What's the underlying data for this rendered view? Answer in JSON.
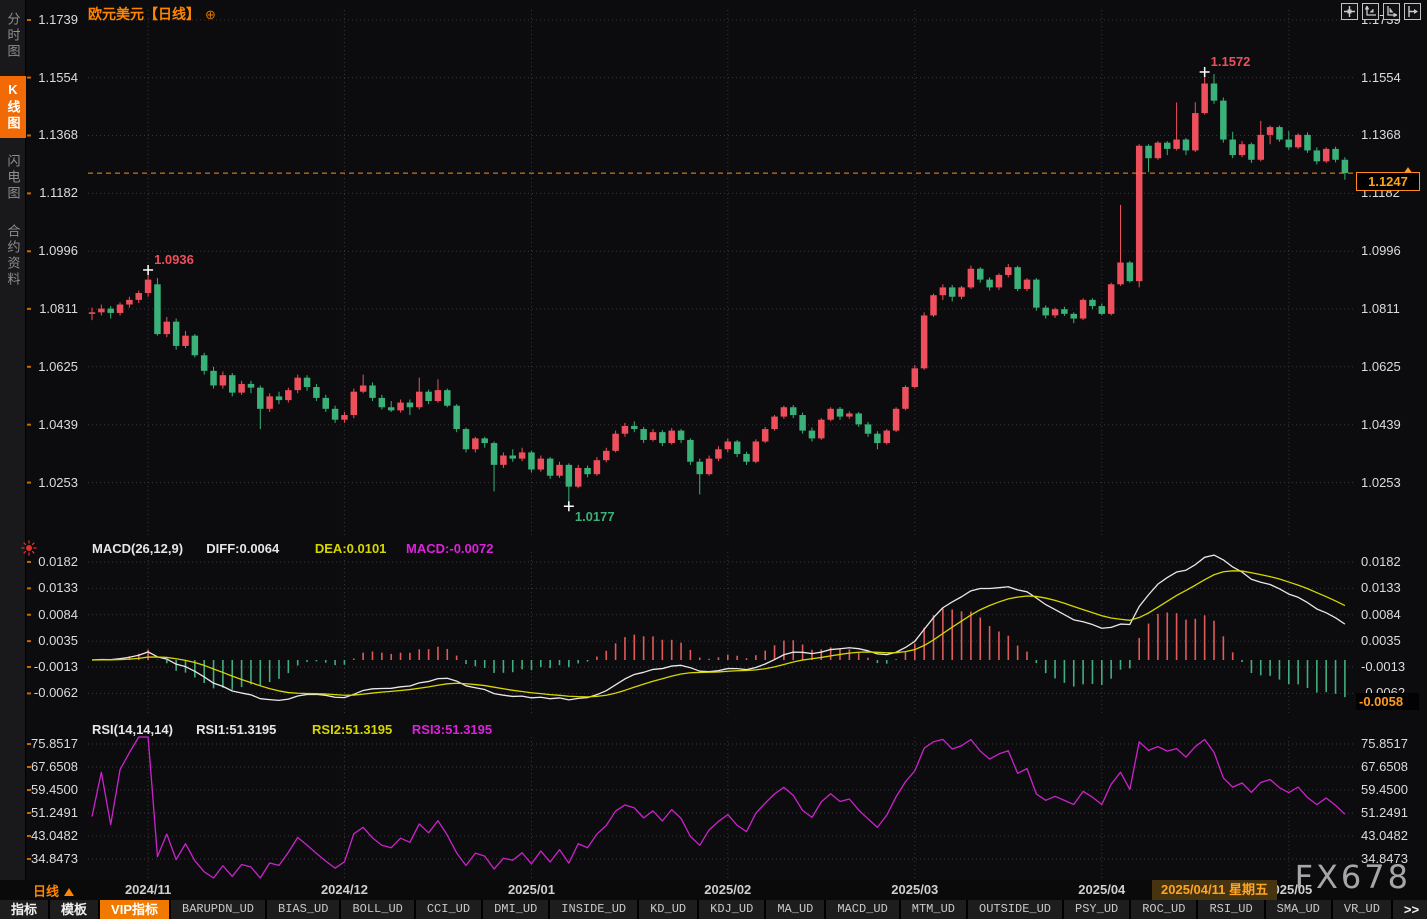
{
  "ui": {
    "circle_plus": "⊕"
  },
  "watermark": "FX678",
  "sidebar": {
    "tabs": [
      {
        "key": "time-chart",
        "label": "分时图",
        "active": false
      },
      {
        "key": "kline-chart",
        "label": "K线图",
        "active": true
      },
      {
        "key": "flash-chart",
        "label": "闪电图",
        "active": false
      },
      {
        "key": "contract-info",
        "label": "合约资料",
        "active": false
      }
    ]
  },
  "chart": {
    "title": "欧元美元",
    "period_tag": "【日线】",
    "period_label": "日线",
    "current_date": "2025/04/11 星期五",
    "last_price_label": "1.1247",
    "macd_last_label": "-0.0058",
    "price_axis_labels": [
      "1.1739",
      "1.1554",
      "1.1368",
      "1.1182",
      "1.0996",
      "1.0811",
      "1.0625",
      "1.0439",
      "1.0253"
    ],
    "macd_axis_labels": [
      "0.0182",
      "0.0133",
      "0.0084",
      "0.0035",
      "-0.0013",
      "-0.0062"
    ],
    "rsi_axis_labels": [
      "75.8517",
      "67.6508",
      "59.4500",
      "51.2491",
      "43.0482",
      "34.8473"
    ]
  },
  "headers": {
    "macd": {
      "name": "MACD(26,12,9)",
      "diff": "DIFF:0.0064",
      "dea": "DEA:0.0101",
      "macd": "MACD:-0.0072"
    },
    "rsi": {
      "name": "RSI(14,14,14)",
      "rsi1": "RSI1:51.3195",
      "rsi2": "RSI2:51.3195",
      "rsi3": "RSI3:51.3195"
    }
  },
  "toolbar": {
    "items": [
      {
        "label": "指标",
        "cn": true,
        "active": false
      },
      {
        "label": "模板",
        "cn": true,
        "active": false
      },
      {
        "label": "VIP指标",
        "cn": true,
        "active": true
      },
      {
        "label": "BARUPDN_UD"
      },
      {
        "label": "BIAS_UD"
      },
      {
        "label": "BOLL_UD"
      },
      {
        "label": "CCI_UD"
      },
      {
        "label": "DMI_UD"
      },
      {
        "label": "INSIDE_UD"
      },
      {
        "label": "KD_UD"
      },
      {
        "label": "KDJ_UD"
      },
      {
        "label": "MA_UD"
      },
      {
        "label": "MACD_UD"
      },
      {
        "label": "MTM_UD"
      },
      {
        "label": "OUTSIDE_UD"
      },
      {
        "label": "PSY_UD"
      },
      {
        "label": "ROC_UD"
      },
      {
        "label": "RSI_UD"
      },
      {
        "label": "SMA_UD"
      },
      {
        "label": "VR_UD"
      },
      {
        "label": ">>",
        "cn": true,
        "active": false
      }
    ]
  },
  "chart_data": {
    "type": "candlestick",
    "symbol": "欧元美元",
    "period": "日线",
    "up_color": "#ee4f5c",
    "down_color": "#3ab178",
    "x_labels": [
      "2024/11",
      "2024/12",
      "2025/01",
      "2025/02",
      "2025/03",
      "2025/04",
      "2025/05"
    ],
    "month_start_indices": [
      6,
      27,
      47,
      68,
      88,
      108,
      128
    ],
    "price_axis": [
      1.1739,
      1.1554,
      1.1368,
      1.1182,
      1.0996,
      1.0811,
      1.0625,
      1.0439,
      1.0253
    ],
    "last_price": 1.1247,
    "annotations": [
      {
        "label": "1.0936",
        "index": 6,
        "price": 1.0936,
        "placement": "above",
        "color": "up"
      },
      {
        "label": "1.1572",
        "index": 119,
        "price": 1.1572,
        "placement": "above",
        "color": "up"
      },
      {
        "label": "1.0177",
        "index": 51,
        "price": 1.0177,
        "placement": "below",
        "color": "down"
      }
    ],
    "indicators": {
      "macd": {
        "params": [
          26,
          12,
          9
        ],
        "diff": 0.0064,
        "dea": 0.0101,
        "macd": -0.0072,
        "axis": [
          0.0182,
          0.0133,
          0.0084,
          0.0035,
          -0.0013,
          -0.0062
        ],
        "last_bar_label": "-0.0058"
      },
      "rsi": {
        "params": [
          14,
          14,
          14
        ],
        "rsi1": 51.3195,
        "rsi2": 51.3195,
        "rsi3": 51.3195,
        "axis": [
          75.8517,
          67.6508,
          59.45,
          51.2491,
          43.0482,
          34.8473
        ]
      }
    },
    "candles": [
      [
        1.0795,
        1.0815,
        1.0775,
        1.08
      ],
      [
        1.08,
        1.0825,
        1.079,
        1.0812
      ],
      [
        1.0812,
        1.082,
        1.078,
        1.0798
      ],
      [
        1.0798,
        1.0832,
        1.079,
        1.0825
      ],
      [
        1.0825,
        1.085,
        1.0815,
        1.084
      ],
      [
        1.084,
        1.087,
        1.083,
        1.0862
      ],
      [
        1.0862,
        1.0936,
        1.085,
        1.0905
      ],
      [
        1.089,
        1.091,
        1.0725,
        1.073
      ],
      [
        1.073,
        1.0785,
        1.072,
        1.077
      ],
      [
        1.077,
        1.078,
        1.068,
        1.0692
      ],
      [
        1.0692,
        1.074,
        1.0685,
        1.0725
      ],
      [
        1.0725,
        1.073,
        1.0655,
        1.0662
      ],
      [
        1.0662,
        1.067,
        1.06,
        1.0612
      ],
      [
        1.0612,
        1.0625,
        1.0555,
        1.0565
      ],
      [
        1.0565,
        1.061,
        1.0555,
        1.0598
      ],
      [
        1.0598,
        1.0605,
        1.053,
        1.0542
      ],
      [
        1.0542,
        1.058,
        1.0535,
        1.057
      ],
      [
        1.057,
        1.058,
        1.054,
        1.0558
      ],
      [
        1.0558,
        1.0565,
        1.0425,
        1.049
      ],
      [
        1.049,
        1.054,
        1.048,
        1.053
      ],
      [
        1.053,
        1.0545,
        1.0505,
        1.0518
      ],
      [
        1.0518,
        1.0558,
        1.051,
        1.055
      ],
      [
        1.055,
        1.06,
        1.054,
        1.059
      ],
      [
        1.059,
        1.0598,
        1.0548,
        1.056
      ],
      [
        1.056,
        1.057,
        1.0515,
        1.0525
      ],
      [
        1.0525,
        1.0535,
        1.048,
        1.049
      ],
      [
        1.049,
        1.05,
        1.0445,
        1.0455
      ],
      [
        1.0455,
        1.048,
        1.0445,
        1.047
      ],
      [
        1.047,
        1.0555,
        1.046,
        1.0545
      ],
      [
        1.0545,
        1.06,
        1.054,
        1.0565
      ],
      [
        1.0565,
        1.0575,
        1.0515,
        1.0525
      ],
      [
        1.0525,
        1.0535,
        1.0488,
        1.0495
      ],
      [
        1.0495,
        1.0515,
        1.048,
        1.0485
      ],
      [
        1.0485,
        1.052,
        1.0478,
        1.051
      ],
      [
        1.051,
        1.052,
        1.047,
        1.0495
      ],
      [
        1.0495,
        1.059,
        1.0488,
        1.0545
      ],
      [
        1.0545,
        1.0552,
        1.0505,
        1.0515
      ],
      [
        1.0515,
        1.0585,
        1.051,
        1.055
      ],
      [
        1.055,
        1.0555,
        1.0495,
        1.05
      ],
      [
        1.05,
        1.0505,
        1.0415,
        1.0425
      ],
      [
        1.0425,
        1.043,
        1.035,
        1.036
      ],
      [
        1.036,
        1.04,
        1.035,
        1.0395
      ],
      [
        1.0395,
        1.04,
        1.0365,
        1.038
      ],
      [
        1.038,
        1.0385,
        1.0225,
        1.031
      ],
      [
        1.031,
        1.035,
        1.03,
        1.034
      ],
      [
        1.034,
        1.036,
        1.032,
        1.033
      ],
      [
        1.033,
        1.0365,
        1.0322,
        1.035
      ],
      [
        1.035,
        1.0355,
        1.0285,
        1.0295
      ],
      [
        1.0295,
        1.034,
        1.0288,
        1.033
      ],
      [
        1.033,
        1.0335,
        1.0265,
        1.0275
      ],
      [
        1.0275,
        1.032,
        1.0268,
        1.031
      ],
      [
        1.031,
        1.0315,
        1.0177,
        1.024
      ],
      [
        1.024,
        1.031,
        1.0235,
        1.03
      ],
      [
        1.03,
        1.0308,
        1.027,
        1.028
      ],
      [
        1.028,
        1.0335,
        1.0275,
        1.0325
      ],
      [
        1.0325,
        1.0365,
        1.0318,
        1.0355
      ],
      [
        1.0355,
        1.042,
        1.035,
        1.041
      ],
      [
        1.041,
        1.0445,
        1.04,
        1.0435
      ],
      [
        1.0435,
        1.045,
        1.0415,
        1.0425
      ],
      [
        1.0425,
        1.0432,
        1.038,
        1.039
      ],
      [
        1.039,
        1.0425,
        1.0385,
        1.0415
      ],
      [
        1.0415,
        1.0422,
        1.037,
        1.038
      ],
      [
        1.038,
        1.0428,
        1.0375,
        1.042
      ],
      [
        1.042,
        1.0425,
        1.038,
        1.039
      ],
      [
        1.039,
        1.0395,
        1.031,
        1.032
      ],
      [
        1.032,
        1.033,
        1.0215,
        1.028
      ],
      [
        1.028,
        1.034,
        1.0275,
        1.033
      ],
      [
        1.033,
        1.037,
        1.0322,
        1.036
      ],
      [
        1.036,
        1.0395,
        1.035,
        1.0385
      ],
      [
        1.0385,
        1.039,
        1.0335,
        1.0345
      ],
      [
        1.0345,
        1.0352,
        1.031,
        1.032
      ],
      [
        1.032,
        1.0392,
        1.0315,
        1.0385
      ],
      [
        1.0385,
        1.0432,
        1.038,
        1.0425
      ],
      [
        1.0425,
        1.047,
        1.042,
        1.0465
      ],
      [
        1.0465,
        1.05,
        1.0458,
        1.0495
      ],
      [
        1.0495,
        1.0502,
        1.046,
        1.047
      ],
      [
        1.047,
        1.0478,
        1.041,
        1.042
      ],
      [
        1.042,
        1.043,
        1.0385,
        1.0395
      ],
      [
        1.0395,
        1.046,
        1.039,
        1.0455
      ],
      [
        1.0455,
        1.0495,
        1.045,
        1.049
      ],
      [
        1.049,
        1.0496,
        1.0455,
        1.0465
      ],
      [
        1.0465,
        1.0482,
        1.0458,
        1.0475
      ],
      [
        1.0475,
        1.048,
        1.0432,
        1.044
      ],
      [
        1.044,
        1.0448,
        1.04,
        1.041
      ],
      [
        1.041,
        1.0418,
        1.036,
        1.038
      ],
      [
        1.038,
        1.0425,
        1.0375,
        1.042
      ],
      [
        1.042,
        1.0495,
        1.0415,
        1.049
      ],
      [
        1.049,
        1.0565,
        1.0485,
        1.056
      ],
      [
        1.056,
        1.063,
        1.0555,
        1.062
      ],
      [
        1.062,
        1.08,
        1.0615,
        1.079
      ],
      [
        1.079,
        1.086,
        1.0785,
        1.0855
      ],
      [
        1.0855,
        1.089,
        1.084,
        1.088
      ],
      [
        1.088,
        1.0888,
        1.0835,
        1.085
      ],
      [
        1.085,
        1.0885,
        1.0842,
        1.088
      ],
      [
        1.088,
        1.095,
        1.0875,
        1.094
      ],
      [
        1.094,
        1.0945,
        1.0895,
        1.0905
      ],
      [
        1.0905,
        1.0912,
        1.087,
        1.088
      ],
      [
        1.088,
        1.0925,
        1.0872,
        1.092
      ],
      [
        1.092,
        1.0955,
        1.0912,
        1.0945
      ],
      [
        1.0945,
        1.095,
        1.0868,
        1.0875
      ],
      [
        1.0875,
        1.091,
        1.0868,
        1.0905
      ],
      [
        1.0905,
        1.091,
        1.0805,
        1.0815
      ],
      [
        1.0815,
        1.0822,
        1.078,
        1.079
      ],
      [
        1.079,
        1.0815,
        1.0782,
        1.081
      ],
      [
        1.081,
        1.0818,
        1.0788,
        1.0795
      ],
      [
        1.0795,
        1.08,
        1.0765,
        1.078
      ],
      [
        1.078,
        1.0845,
        1.0775,
        1.084
      ],
      [
        1.084,
        1.0845,
        1.081,
        1.082
      ],
      [
        1.082,
        1.0828,
        1.079,
        1.0795
      ],
      [
        1.0795,
        1.0895,
        1.079,
        1.089
      ],
      [
        1.089,
        1.1145,
        1.0885,
        1.096
      ],
      [
        1.096,
        1.0965,
        1.0895,
        1.09
      ],
      [
        1.09,
        1.134,
        1.088,
        1.1335
      ],
      [
        1.1335,
        1.134,
        1.125,
        1.1295
      ],
      [
        1.1295,
        1.135,
        1.129,
        1.1345
      ],
      [
        1.1345,
        1.135,
        1.1305,
        1.1325
      ],
      [
        1.1325,
        1.1474,
        1.132,
        1.1355
      ],
      [
        1.1355,
        1.136,
        1.1305,
        1.132
      ],
      [
        1.132,
        1.1475,
        1.1315,
        1.144
      ],
      [
        1.144,
        1.1572,
        1.1435,
        1.1535
      ],
      [
        1.1535,
        1.1565,
        1.147,
        1.148
      ],
      [
        1.148,
        1.149,
        1.1345,
        1.1355
      ],
      [
        1.1355,
        1.138,
        1.1295,
        1.1305
      ],
      [
        1.1305,
        1.135,
        1.1298,
        1.134
      ],
      [
        1.134,
        1.1345,
        1.128,
        1.129
      ],
      [
        1.129,
        1.1415,
        1.1285,
        1.137
      ],
      [
        1.137,
        1.14,
        1.134,
        1.1395
      ],
      [
        1.1395,
        1.14,
        1.1348,
        1.1355
      ],
      [
        1.1355,
        1.1382,
        1.1322,
        1.133
      ],
      [
        1.133,
        1.1375,
        1.1325,
        1.137
      ],
      [
        1.137,
        1.1378,
        1.1312,
        1.132
      ],
      [
        1.132,
        1.133,
        1.1275,
        1.1285
      ],
      [
        1.1285,
        1.133,
        1.128,
        1.1325
      ],
      [
        1.1325,
        1.1332,
        1.1282,
        1.129
      ],
      [
        1.129,
        1.1298,
        1.1226,
        1.1247
      ]
    ]
  }
}
